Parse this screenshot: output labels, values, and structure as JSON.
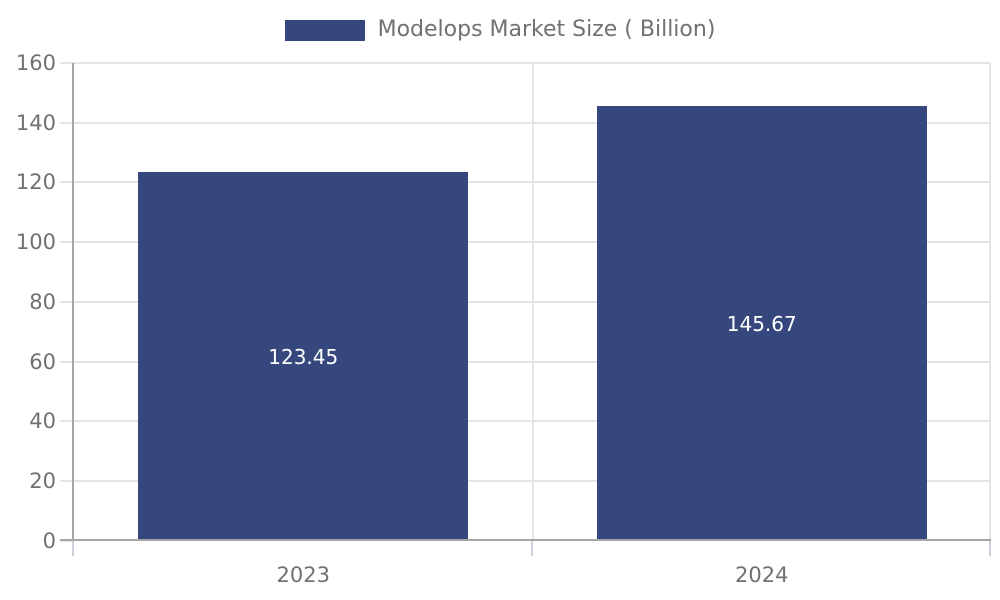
{
  "chart_data": {
    "type": "bar",
    "title": "Modelops Market Size ( Billion)",
    "legend": {
      "position": "top-center",
      "label": "Modelops Market Size ( Billion)"
    },
    "categories": [
      "2023",
      "2024"
    ],
    "values": [
      123.45,
      145.67
    ],
    "value_labels": [
      "123.45",
      "145.67"
    ],
    "xlabel": "",
    "ylabel": "",
    "ylim": [
      0,
      160
    ],
    "yticks": [
      0,
      20,
      40,
      60,
      80,
      100,
      120,
      140,
      160
    ],
    "grid": true,
    "bar_label_position": "center",
    "colors": {
      "bar": "#36477E",
      "bar_label_text": "#ffffff",
      "axis_text": "#717171",
      "grid_line": "#e4e4e4",
      "axis_line": "#a6a6a6",
      "tick_line": "#ccd0da",
      "background": "#ffffff"
    }
  }
}
